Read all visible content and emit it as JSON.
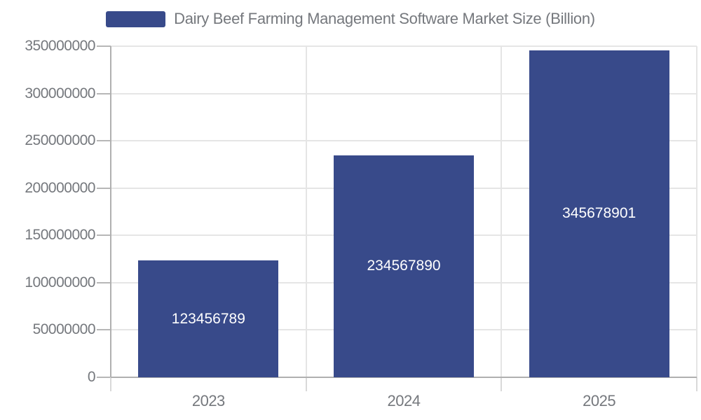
{
  "chart_data": {
    "type": "bar",
    "title": "Dairy Beef Farming Management Software Market Size (Billion)",
    "legend_position": "top",
    "categories": [
      "2023",
      "2024",
      "2025"
    ],
    "series": [
      {
        "name": "Dairy Beef Farming Management Software Market Size (Billion)",
        "values": [
          123456789,
          234567890,
          345678901
        ],
        "value_labels": [
          "123456789",
          "234567890",
          "345678901"
        ]
      }
    ],
    "xlabel": "",
    "ylabel": "",
    "ylim": [
      0,
      350000000
    ],
    "ytick_step": 50000000,
    "ytick_labels": [
      "0",
      "50000000",
      "100000000",
      "150000000",
      "200000000",
      "250000000",
      "300000000",
      "350000000"
    ],
    "grid": true,
    "value_labels_inside_bars": true,
    "colors": {
      "bar": "#384a8a",
      "grid": "#e5e5e5",
      "axis": "#b0b0b0",
      "y_tick": "#b7b7b7",
      "x_tick": "#d9d9d9",
      "text": "#75787d",
      "value_label": "#ffffff"
    }
  }
}
